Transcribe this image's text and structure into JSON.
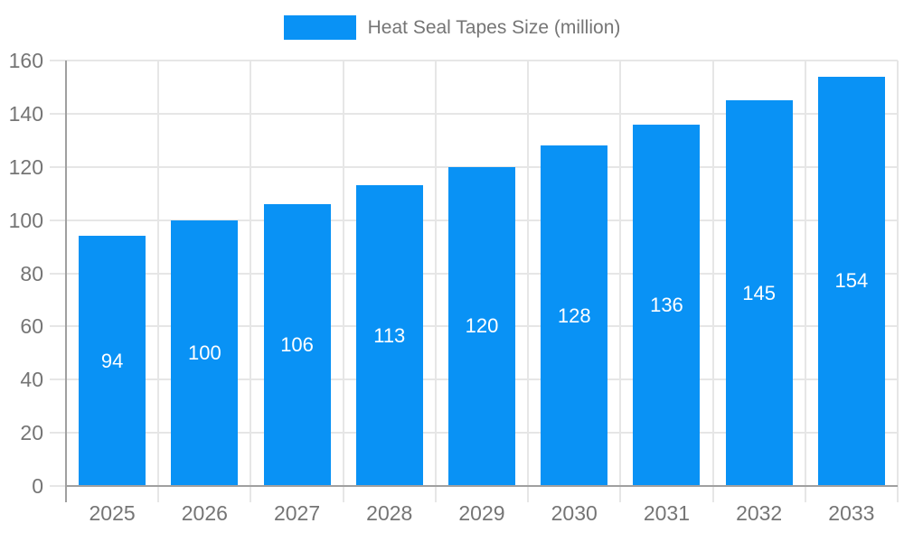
{
  "chart_data": {
    "type": "bar",
    "title": "Heat Seal Tapes Size (million)",
    "categories": [
      "2025",
      "2026",
      "2027",
      "2028",
      "2029",
      "2030",
      "2031",
      "2032",
      "2033"
    ],
    "values": [
      94,
      100,
      106,
      113,
      120,
      128,
      136,
      145,
      154
    ],
    "xlabel": "",
    "ylabel": "",
    "ylim": [
      0,
      160
    ],
    "ytick_step": 20,
    "grid": true,
    "data_labels": "inside-center",
    "legend_position": "top",
    "colors": {
      "bar": "#0992f5",
      "bar_label": "#ffffff",
      "axis_text": "#757575",
      "grid_line": "#e6e6e6",
      "axis_line": "#a0a0a0",
      "background": "#ffffff"
    }
  }
}
